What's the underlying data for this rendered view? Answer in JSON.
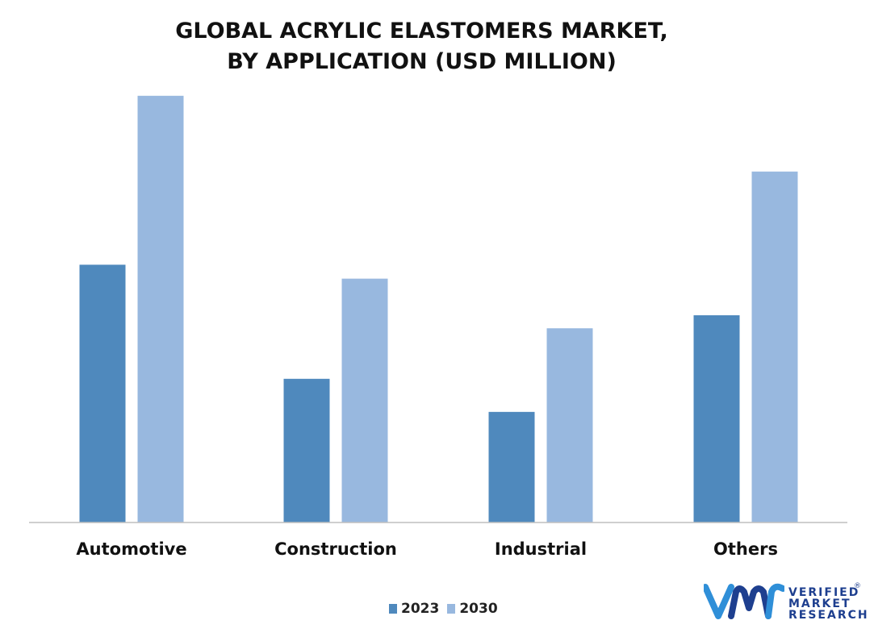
{
  "chart_data": {
    "type": "bar",
    "title_line1": "GLOBAL ACRYLIC ELASTOMERS MARKET,",
    "title_line2": "BY APPLICATION (USD MILLION)",
    "categories": [
      "Automotive",
      "Construction",
      "Industrial",
      "Others"
    ],
    "series": [
      {
        "name": "2023",
        "color": "#4f89bd",
        "values": [
          296,
          165,
          127,
          238
        ]
      },
      {
        "name": "2030",
        "color": "#98b8df",
        "values": [
          490,
          280,
          223,
          403
        ]
      }
    ],
    "ylim": [
      0,
      500
    ],
    "grid": false,
    "legend_position": "bottom-center"
  },
  "branding": {
    "logo_line1": "VERIFIED",
    "logo_line2": "MARKET",
    "logo_line3": "RESEARCH",
    "registered_mark": "®",
    "logo_colors": [
      "#1e3f8f",
      "#2f8fd8"
    ]
  }
}
